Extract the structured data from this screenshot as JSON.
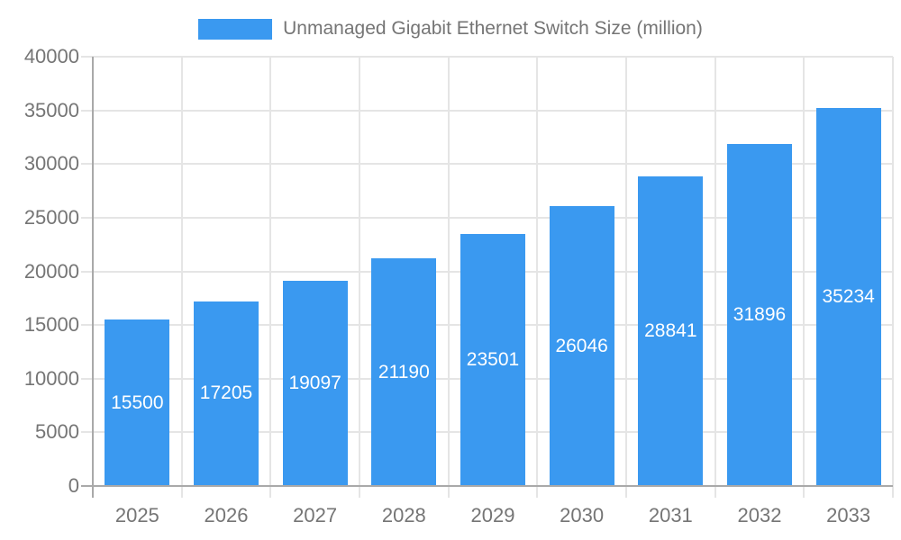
{
  "chart_data": {
    "type": "bar",
    "title": "Unmanaged Gigabit Ethernet Switch Size (million)",
    "categories": [
      "2025",
      "2026",
      "2027",
      "2028",
      "2029",
      "2030",
      "2031",
      "2032",
      "2033"
    ],
    "values": [
      15500,
      17205,
      19097,
      21190,
      23501,
      26046,
      28841,
      31896,
      35234
    ],
    "value_labels": [
      "15500",
      "17205",
      "19097",
      "21190",
      "23501",
      "26046",
      "28841",
      "31896",
      "35234"
    ],
    "xlabel": "",
    "ylabel": "",
    "ylim": [
      0,
      40000
    ],
    "ytick_step": 5000,
    "yticks": [
      0,
      5000,
      10000,
      15000,
      20000,
      25000,
      30000,
      35000,
      40000
    ],
    "ytick_labels": [
      "0",
      "5000",
      "10000",
      "15000",
      "20000",
      "25000",
      "30000",
      "35000",
      "40000"
    ],
    "grid": true,
    "legend_position": "top",
    "colors": {
      "bar": "#3a99f0",
      "value_label": "#ffffff",
      "axis_line": "#a9a9a9",
      "gridline": "#e5e5e5",
      "axis_text": "#757575"
    }
  }
}
